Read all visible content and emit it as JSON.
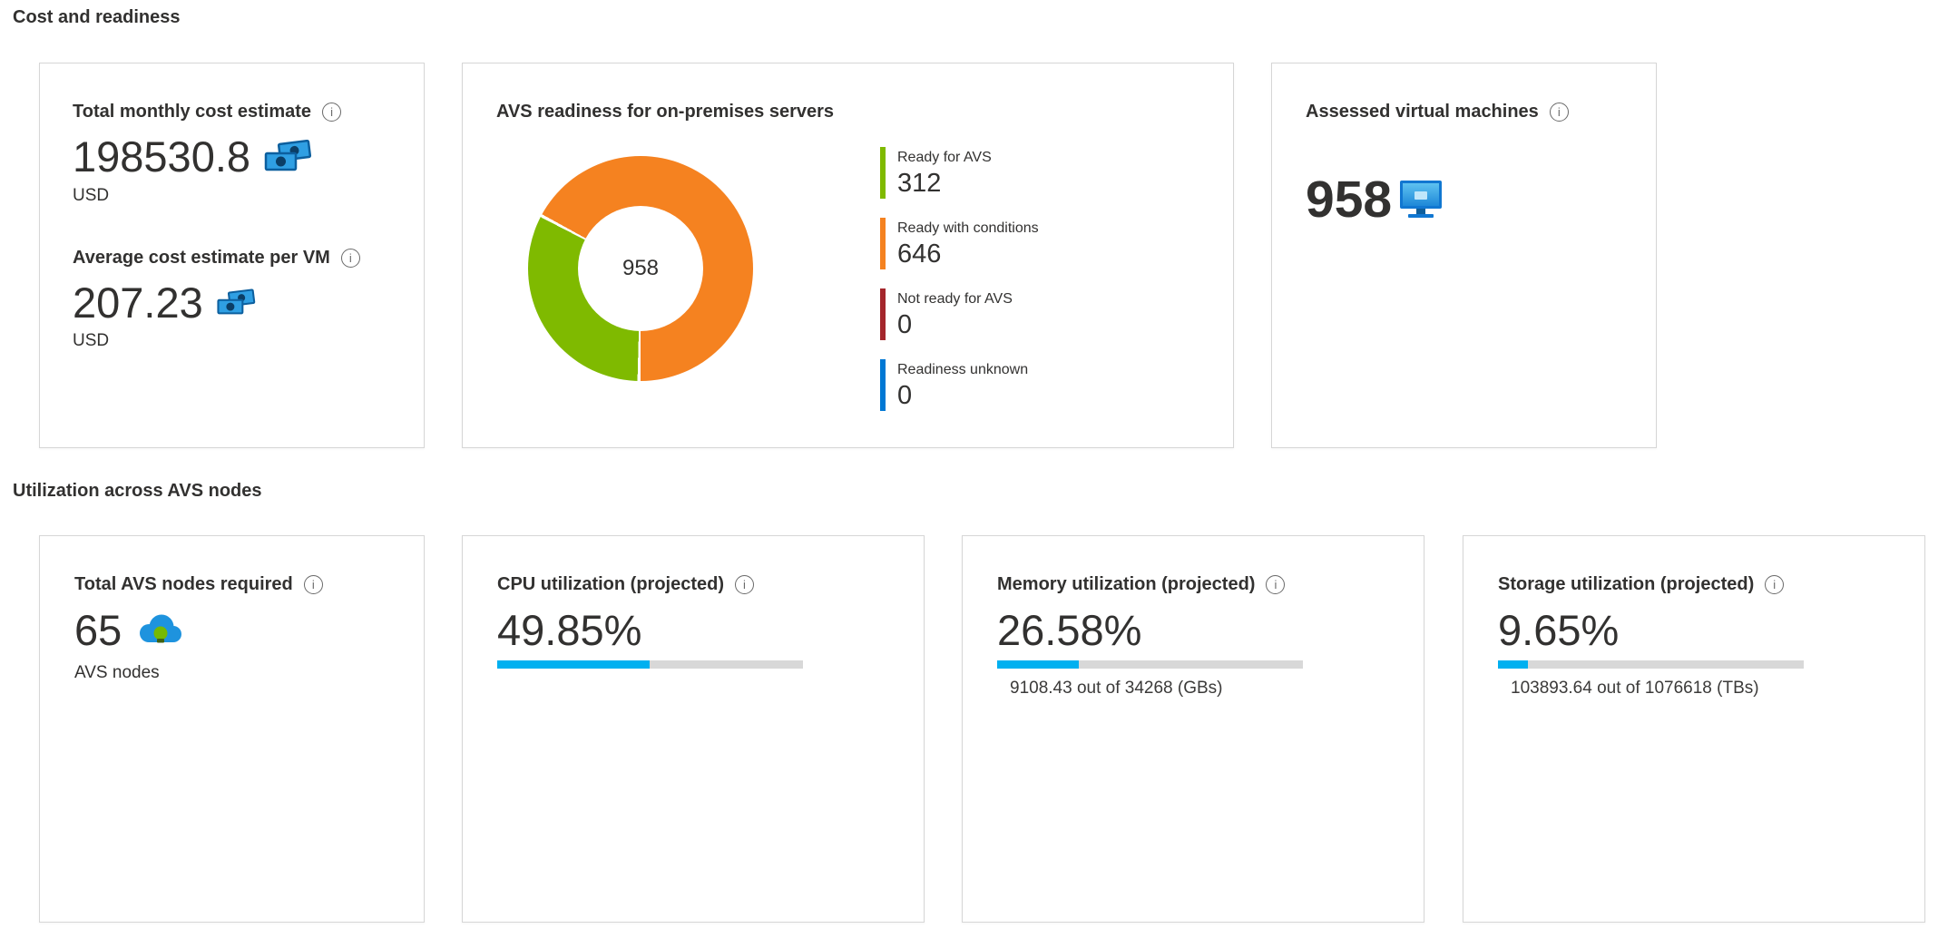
{
  "sections": {
    "cost_and_readiness": "Cost and readiness",
    "utilization": "Utilization across AVS nodes"
  },
  "cards": {
    "cost": {
      "monthly": {
        "title": "Total monthly cost estimate",
        "value": "198530.8",
        "unit": "USD"
      },
      "per_vm": {
        "title": "Average cost estimate per VM",
        "value": "207.23",
        "unit": "USD"
      }
    },
    "readiness": {
      "title": "AVS readiness for on-premises servers",
      "chart_data": {
        "type": "pie",
        "donut": true,
        "title": "AVS readiness for on-premises servers",
        "center_label": "958",
        "total": 958,
        "categories": [
          "Ready for AVS",
          "Ready with conditions",
          "Not ready for AVS",
          "Readiness unknown"
        ],
        "values": [
          312,
          646,
          0,
          0
        ],
        "colors": [
          "#7fba00",
          "#f58220",
          "#a4262c",
          "#0078d4"
        ],
        "legend_position": "right",
        "start_angle_deg": 180
      }
    },
    "assessed_vms": {
      "title": "Assessed virtual machines",
      "value": "958"
    },
    "nodes": {
      "title": "Total AVS nodes required",
      "value": "65",
      "unit": "AVS nodes"
    },
    "cpu": {
      "title": "CPU utilization (projected)",
      "value_label": "49.85%",
      "percent": 49.85
    },
    "memory": {
      "title": "Memory utilization (projected)",
      "value_label": "26.58%",
      "percent": 26.58,
      "detail": "9108.43 out of 34268 (GBs)"
    },
    "storage": {
      "title": "Storage utilization (projected)",
      "value_label": "9.65%",
      "percent": 9.65,
      "detail": "103893.64 out of 1076618 (TBs)"
    }
  },
  "icons": {
    "info": "info-icon",
    "money": "money-icon",
    "vm_monitor": "vm-monitor-icon",
    "avs_node_cloud": "avs-node-cloud-icon"
  },
  "colors": {
    "accent_progress": "#00b0f0",
    "progress_track": "#d8d8d8",
    "text": "#323130",
    "ready_green": "#7fba00",
    "conditions_orange": "#f58220",
    "not_ready_red": "#a4262c",
    "unknown_blue": "#0078d4"
  }
}
